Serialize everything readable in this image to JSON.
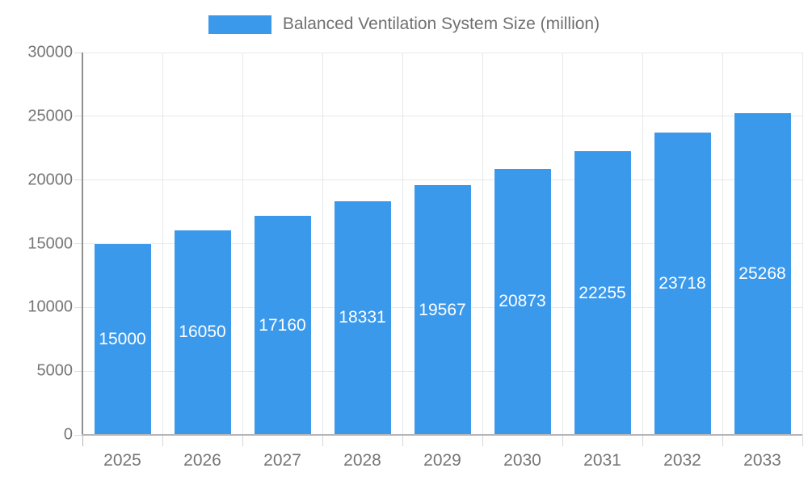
{
  "legend": {
    "label": "Balanced Ventilation System Size (million)"
  },
  "chart_data": {
    "type": "bar",
    "title": "Balanced Ventilation System Size (million)",
    "categories": [
      "2025",
      "2026",
      "2027",
      "2028",
      "2029",
      "2030",
      "2031",
      "2032",
      "2033"
    ],
    "values": [
      15000,
      16050,
      17160,
      18331,
      19567,
      20873,
      22255,
      23718,
      25268
    ],
    "bar_labels": [
      "15000",
      "16050",
      "17160",
      "18331",
      "19567",
      "20873",
      "22255",
      "23718",
      "25268"
    ],
    "xlabel": "",
    "ylabel": "",
    "ylim": [
      0,
      30000
    ],
    "yticks": [
      0,
      5000,
      10000,
      15000,
      20000,
      25000,
      30000
    ],
    "ytick_labels": [
      "0",
      "5000",
      "10000",
      "15000",
      "20000",
      "25000",
      "30000"
    ],
    "grid": true,
    "legend_position": "top-center",
    "label_position": "inside-center",
    "colors": {
      "bar": "#3b99ec",
      "bar_label_text": "#ffffff",
      "grid_line": "#e8e8e8",
      "x_axis_line": "#b5b5b5",
      "y_axis_line": "#909090",
      "tick_text": "#757575",
      "legend_text": "#707070",
      "background": "#ffffff"
    }
  }
}
